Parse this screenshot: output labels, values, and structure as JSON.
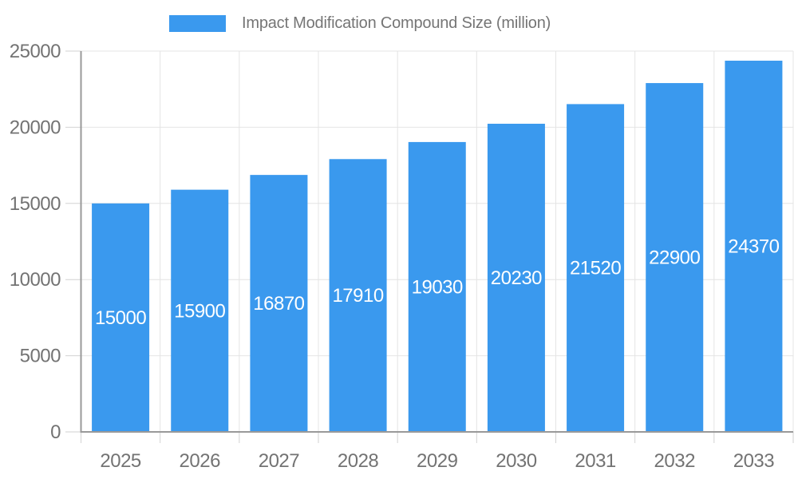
{
  "chart_data": {
    "type": "bar",
    "title": "Impact Modification Compound Size (million)",
    "legend_position": "top",
    "categories": [
      "2025",
      "2026",
      "2027",
      "2028",
      "2029",
      "2030",
      "2031",
      "2032",
      "2033"
    ],
    "series": [
      {
        "name": "Impact Modification Compound Size (million)",
        "values": [
          15000,
          15900,
          16870,
          17910,
          19030,
          20230,
          21520,
          22900,
          24370
        ]
      }
    ],
    "xlabel": "",
    "ylabel": "",
    "ylim": [
      0,
      25000
    ],
    "yticks": [
      0,
      5000,
      10000,
      15000,
      20000,
      25000
    ],
    "grid": true,
    "bar_labels_visible": true,
    "colors": {
      "bar": "#3a99ee",
      "grid": "#e4e4e4",
      "tick": "#d2d2d2",
      "axis": "#999999",
      "axis_label": "#737373",
      "bar_label": "#ffffff",
      "title": "#757575",
      "background": "#ffffff"
    }
  }
}
